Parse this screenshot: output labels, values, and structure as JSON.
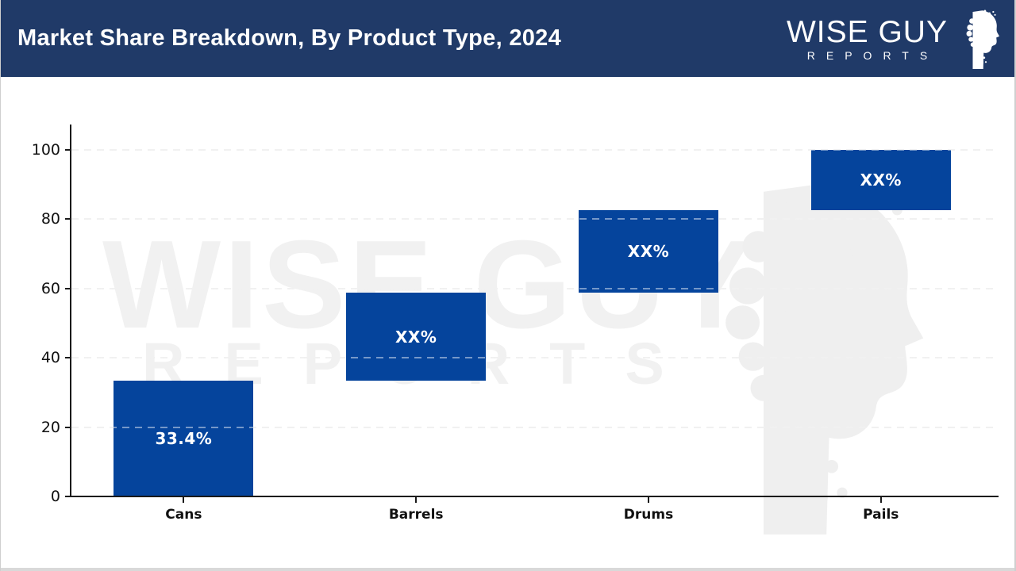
{
  "header": {
    "title": "Market Share Breakdown, By Product Type, 2024",
    "bg_color": "#203a68",
    "logo": {
      "line1": "WISE GUY",
      "line2": "REPORTS"
    }
  },
  "watermark": {
    "line1": "WISE GUY",
    "line2": "REPORTS"
  },
  "chart_data": {
    "type": "bar",
    "subtype": "waterfall",
    "title": "Market Share Breakdown, By Product Type, 2024",
    "categories": [
      "Cans",
      "Barrels",
      "Drums",
      "Pails"
    ],
    "segments": [
      {
        "start": 0,
        "end": 33.4
      },
      {
        "start": 33.4,
        "end": 58.8
      },
      {
        "start": 58.8,
        "end": 82.5
      },
      {
        "start": 82.5,
        "end": 100
      }
    ],
    "values": [
      33.4,
      25.4,
      23.7,
      17.5
    ],
    "displayed_labels": [
      "33.4%",
      "XX%",
      "XX%",
      "XX%"
    ],
    "xlabel": "",
    "ylabel": "",
    "ylim": [
      0,
      100
    ],
    "yticks": [
      0,
      20,
      40,
      60,
      80,
      100
    ],
    "grid": true,
    "gridline_style": "dashed",
    "legend": "none",
    "bar_color": "#05449c",
    "axis_color": "#1a1a1a",
    "gridline_color": "#e5e5e5",
    "value_label_color": "#ffffff"
  }
}
